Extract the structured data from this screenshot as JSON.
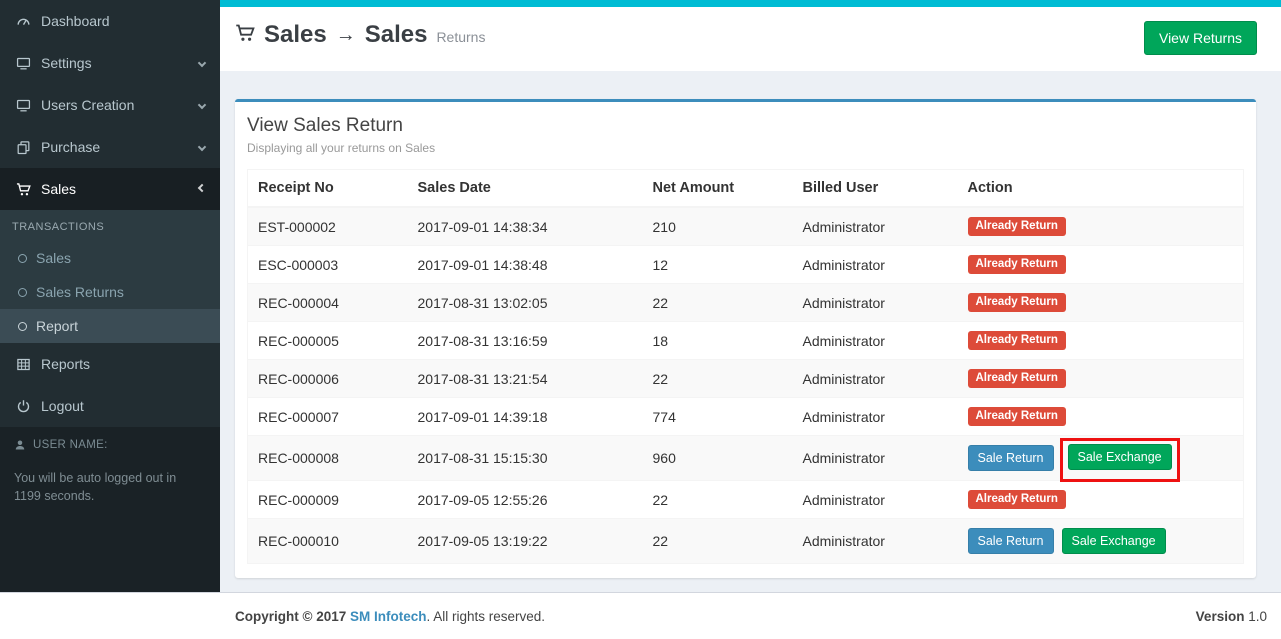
{
  "sidebar": {
    "items": [
      {
        "label": "Dashboard"
      },
      {
        "label": "Settings"
      },
      {
        "label": "Users Creation"
      },
      {
        "label": "Purchase"
      },
      {
        "label": "Sales"
      }
    ],
    "section": "TRANSACTIONS",
    "submenu": [
      {
        "label": "Sales"
      },
      {
        "label": "Sales Returns"
      },
      {
        "label": "Report"
      }
    ],
    "items_bottom": [
      {
        "label": "Reports"
      },
      {
        "label": "Logout"
      }
    ],
    "user_label": "USER NAME:",
    "auto_logout_text": "You will be auto logged out in 1199 seconds."
  },
  "header": {
    "title": "Sales",
    "arrow": "→",
    "title2": "Sales",
    "title_small": "Returns",
    "view_returns_button": "View Returns"
  },
  "panel": {
    "title": "View Sales Return",
    "subtitle": "Displaying all your returns on Sales",
    "table": {
      "columns": [
        "Receipt No",
        "Sales Date",
        "Net Amount",
        "Billed User",
        "Action"
      ],
      "rows": [
        {
          "receipt": "EST-000002",
          "date": "2017-09-01 14:38:34",
          "amount": "210",
          "user": "Administrator",
          "actions": [
            "already_return"
          ]
        },
        {
          "receipt": "ESC-000003",
          "date": "2017-09-01 14:38:48",
          "amount": "12",
          "user": "Administrator",
          "actions": [
            "already_return"
          ]
        },
        {
          "receipt": "REC-000004",
          "date": "2017-08-31 13:02:05",
          "amount": "22",
          "user": "Administrator",
          "actions": [
            "already_return"
          ]
        },
        {
          "receipt": "REC-000005",
          "date": "2017-08-31 13:16:59",
          "amount": "18",
          "user": "Administrator",
          "actions": [
            "already_return"
          ]
        },
        {
          "receipt": "REC-000006",
          "date": "2017-08-31 13:21:54",
          "amount": "22",
          "user": "Administrator",
          "actions": [
            "already_return"
          ]
        },
        {
          "receipt": "REC-000007",
          "date": "2017-09-01 14:39:18",
          "amount": "774",
          "user": "Administrator",
          "actions": [
            "already_return"
          ]
        },
        {
          "receipt": "REC-000008",
          "date": "2017-08-31 15:15:30",
          "amount": "960",
          "user": "Administrator",
          "actions": [
            "sale_return",
            "sale_exchange"
          ],
          "highlight": "sale_exchange"
        },
        {
          "receipt": "REC-000009",
          "date": "2017-09-05 12:55:26",
          "amount": "22",
          "user": "Administrator",
          "actions": [
            "already_return"
          ]
        },
        {
          "receipt": "REC-000010",
          "date": "2017-09-05 13:19:22",
          "amount": "22",
          "user": "Administrator",
          "actions": [
            "sale_return",
            "sale_exchange"
          ]
        }
      ]
    }
  },
  "badges": {
    "already_return": "Already Return",
    "sale_return": "Sale Return",
    "sale_exchange": "Sale Exchange"
  },
  "footer": {
    "copyright": "Copyright © 2017",
    "brand": "SM Infotech",
    "rights": ". All rights reserved.",
    "version_label": "Version",
    "version_value": "1.0"
  },
  "colors": {
    "top_strip": "#00bcd4",
    "card_accent": "#3c8dbc",
    "green": "#00a65a",
    "blue": "#3c8dbc",
    "red": "#dd4b39",
    "annotation_red": "#ee1111",
    "sidebar_bg": "#222d32"
  }
}
